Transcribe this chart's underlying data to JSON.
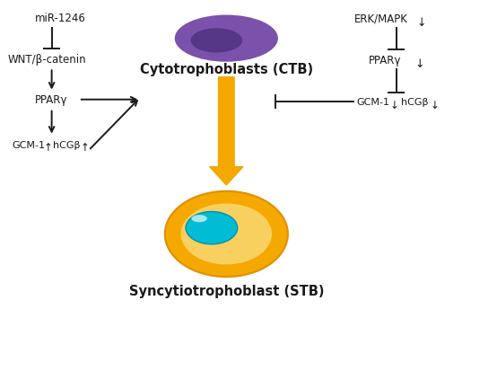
{
  "fig_width": 5.54,
  "fig_height": 4.14,
  "dpi": 100,
  "bg_color": "#ffffff",
  "ctb_cell_color": "#7b52ab",
  "ctb_cell_inner_color": "#4a2d7a",
  "stb_cell_outer_color": "#f5a800",
  "stb_cell_outer_edge": "#e09000",
  "stb_cell_inner_color": "#00bcd4",
  "stb_cell_inner_edge": "#0090a8",
  "arrow_color": "#f5a800",
  "line_color": "#1a1a1a",
  "text_color": "#1a1a1a",
  "label_ctb": "Cytotrophoblasts (CTB)",
  "label_stb": "Syncytiotrophoblast (STB)",
  "label_mir": "miR-1246",
  "label_wnt": "WNT/β-catenin",
  "label_ppary_left": "PPARγ",
  "label_ppary_right": "PPARγ",
  "label_gcm1_left": "GCM-1",
  "label_hcgb_left": "hCGβ",
  "label_gcm1_right": "GCM-1",
  "label_hcgb_right": "hCGβ",
  "label_erk": "ERK/MAPK"
}
